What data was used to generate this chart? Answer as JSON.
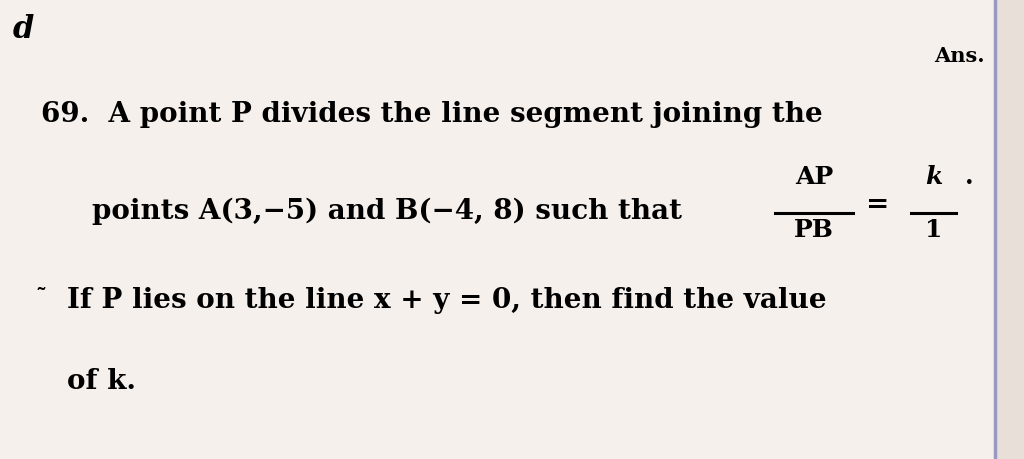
{
  "background_color": "#e8e0d8",
  "corner_label": "d",
  "ans_label": "Ans.",
  "line1": "69.  A point P divides the line segment joining the",
  "line2_left": "points A(3,−5) and B(−4, 8) such that",
  "frac_numerator": "AP",
  "frac_denominator": "PB",
  "frac_equals": "=",
  "frac_num_k": "k",
  "frac_den_1": "1",
  "line3": "If P lies on the line x + y = 0, then find the value",
  "line4": "of k.",
  "fig_width": 10.24,
  "fig_height": 4.6,
  "dpi": 100,
  "vertical_line_x": 0.972,
  "vertical_line_color": "#9090c0"
}
